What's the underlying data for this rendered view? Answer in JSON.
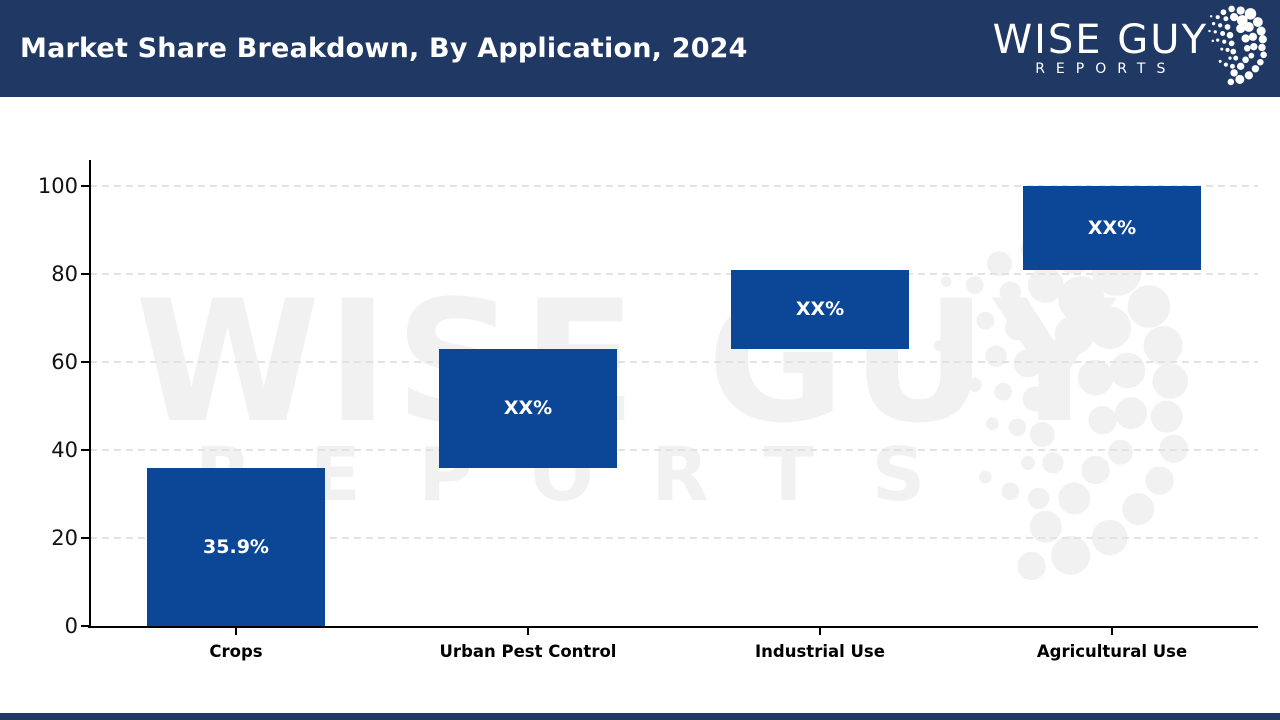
{
  "header": {
    "title": "Market Share Breakdown, By Application, 2024",
    "logo": {
      "line1": "WISE GUY",
      "line2": "REPORTS"
    }
  },
  "watermark": {
    "line1": "WISE GUY",
    "line2": "REPORTS"
  },
  "colors": {
    "header_bg": "#1f3864",
    "footer_bar": "#1f3864",
    "bar": "#0b4796",
    "bar_label": "#ffffff",
    "grid": "#e2e2e2",
    "axis": "#000000",
    "watermark": "#f1f1f1"
  },
  "chart_data": {
    "type": "bar",
    "subtype": "waterfall",
    "title": "Market Share Breakdown, By Application, 2024",
    "categories": [
      "Crops",
      "Urban Pest Control",
      "Industrial Use",
      "Agricultural Use"
    ],
    "segments": [
      {
        "category": "Crops",
        "start": 0,
        "end": 35.9,
        "label": "35.9%"
      },
      {
        "category": "Urban Pest Control",
        "start": 35.9,
        "end": 63,
        "label": "XX%"
      },
      {
        "category": "Industrial Use",
        "start": 63,
        "end": 81,
        "label": "XX%"
      },
      {
        "category": "Agricultural Use",
        "start": 81,
        "end": 100,
        "label": "XX%"
      }
    ],
    "ylim": [
      0,
      100
    ],
    "yticks": [
      0,
      20,
      40,
      60,
      80,
      100
    ],
    "xlabel": "",
    "ylabel": "",
    "grid": "horizontal-dashed",
    "legend": "none"
  }
}
